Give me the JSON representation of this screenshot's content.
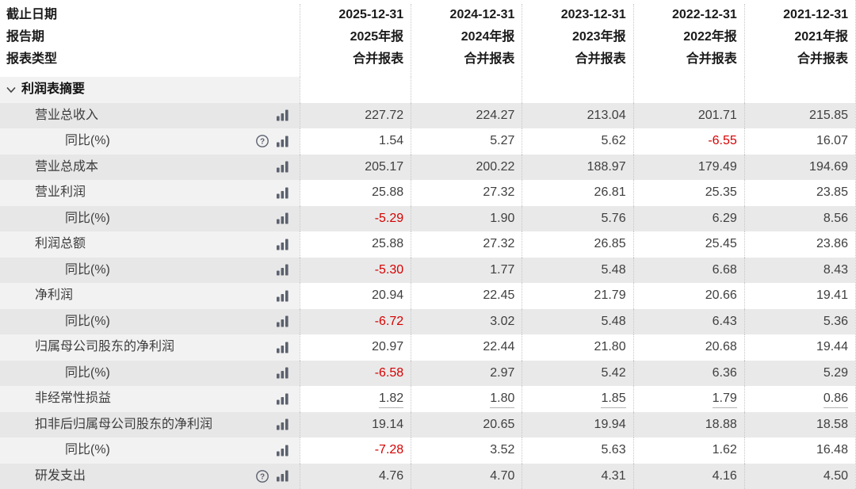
{
  "header": {
    "row_labels": [
      "截止日期",
      "报告期",
      "报表类型"
    ],
    "columns": [
      {
        "date": "2025-12-31",
        "period": "2025年报",
        "report_type": "合并报表"
      },
      {
        "date": "2024-12-31",
        "period": "2024年报",
        "report_type": "合并报表"
      },
      {
        "date": "2023-12-31",
        "period": "2023年报",
        "report_type": "合并报表"
      },
      {
        "date": "2022-12-31",
        "period": "2022年报",
        "report_type": "合并报表"
      },
      {
        "date": "2021-12-31",
        "period": "2021年报",
        "report_type": "合并报表"
      }
    ]
  },
  "section": {
    "label": "利润表摘要",
    "chevron_icon": "chevron-down"
  },
  "rows": [
    {
      "label": "营业总收入",
      "indent": 1,
      "help": false,
      "underline": false,
      "striped": true,
      "values": [
        "227.72",
        "224.27",
        "213.04",
        "201.71",
        "215.85"
      ]
    },
    {
      "label": "同比(%)",
      "indent": 2,
      "help": true,
      "underline": false,
      "striped": false,
      "values": [
        "1.54",
        "5.27",
        "5.62",
        "-6.55",
        "16.07"
      ]
    },
    {
      "label": "营业总成本",
      "indent": 1,
      "help": false,
      "underline": false,
      "striped": true,
      "values": [
        "205.17",
        "200.22",
        "188.97",
        "179.49",
        "194.69"
      ]
    },
    {
      "label": "营业利润",
      "indent": 1,
      "help": false,
      "underline": false,
      "striped": false,
      "values": [
        "25.88",
        "27.32",
        "26.81",
        "25.35",
        "23.85"
      ]
    },
    {
      "label": "同比(%)",
      "indent": 2,
      "help": false,
      "underline": false,
      "striped": true,
      "values": [
        "-5.29",
        "1.90",
        "5.76",
        "6.29",
        "8.56"
      ]
    },
    {
      "label": "利润总额",
      "indent": 1,
      "help": false,
      "underline": false,
      "striped": false,
      "values": [
        "25.88",
        "27.32",
        "26.85",
        "25.45",
        "23.86"
      ]
    },
    {
      "label": "同比(%)",
      "indent": 2,
      "help": false,
      "underline": false,
      "striped": true,
      "values": [
        "-5.30",
        "1.77",
        "5.48",
        "6.68",
        "8.43"
      ]
    },
    {
      "label": "净利润",
      "indent": 1,
      "help": false,
      "underline": false,
      "striped": false,
      "values": [
        "20.94",
        "22.45",
        "21.79",
        "20.66",
        "19.41"
      ]
    },
    {
      "label": "同比(%)",
      "indent": 2,
      "help": false,
      "underline": false,
      "striped": true,
      "values": [
        "-6.72",
        "3.02",
        "5.48",
        "6.43",
        "5.36"
      ]
    },
    {
      "label": "归属母公司股东的净利润",
      "indent": 1,
      "help": false,
      "underline": false,
      "striped": false,
      "values": [
        "20.97",
        "22.44",
        "21.80",
        "20.68",
        "19.44"
      ]
    },
    {
      "label": "同比(%)",
      "indent": 2,
      "help": false,
      "underline": false,
      "striped": true,
      "values": [
        "-6.58",
        "2.97",
        "5.42",
        "6.36",
        "5.29"
      ]
    },
    {
      "label": "非经常性损益",
      "indent": 1,
      "help": false,
      "underline": true,
      "striped": false,
      "values": [
        "1.82",
        "1.80",
        "1.85",
        "1.79",
        "0.86"
      ]
    },
    {
      "label": "扣非后归属母公司股东的净利润",
      "indent": 1,
      "help": false,
      "underline": false,
      "striped": true,
      "values": [
        "19.14",
        "20.65",
        "19.94",
        "18.88",
        "18.58"
      ]
    },
    {
      "label": "同比(%)",
      "indent": 2,
      "help": false,
      "underline": false,
      "striped": false,
      "values": [
        "-7.28",
        "3.52",
        "5.63",
        "1.62",
        "16.48"
      ]
    },
    {
      "label": "研发支出",
      "indent": 1,
      "help": true,
      "underline": false,
      "striped": true,
      "values": [
        "4.76",
        "4.70",
        "4.31",
        "4.16",
        "4.50"
      ]
    }
  ],
  "icons": {
    "bar_chart": "bar-chart-icon",
    "help": "question-circle-icon",
    "chevron": "chevron-down-icon"
  },
  "colors": {
    "negative_value": "#d60000",
    "stripe_bg": "#e9e9e9",
    "label_column_bg": "#f2f2f2",
    "icon_color": "#5b616e",
    "divider": "#c6c6c6",
    "text": "#3f3f3f",
    "header_text": "#1a1a1a"
  }
}
